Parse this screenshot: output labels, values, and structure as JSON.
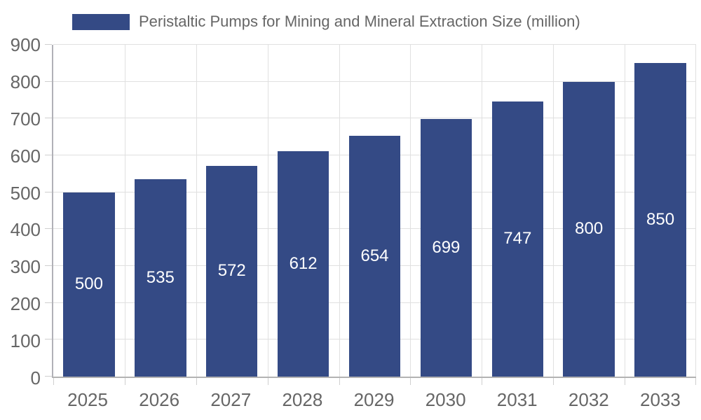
{
  "chart_data": {
    "type": "bar",
    "title": "Peristaltic Pumps for Mining and Mineral Extraction Size (million)",
    "categories": [
      "2025",
      "2026",
      "2027",
      "2028",
      "2029",
      "2030",
      "2031",
      "2032",
      "2033"
    ],
    "values": [
      500,
      535,
      572,
      612,
      654,
      699,
      747,
      800,
      850
    ],
    "xlabel": "",
    "ylabel": "",
    "ylim": [
      0,
      900
    ],
    "yticks": [
      0,
      100,
      200,
      300,
      400,
      500,
      600,
      700,
      800,
      900
    ],
    "grid": true,
    "legend_position": "top-left",
    "value_labels": "inside-center",
    "colors": {
      "bar": "#344a85",
      "value_label": "#ffffff",
      "axis_text": "#666666",
      "gridline": "#e0e0e0",
      "axis_line": "#b3b3b3",
      "background": "#ffffff"
    }
  }
}
